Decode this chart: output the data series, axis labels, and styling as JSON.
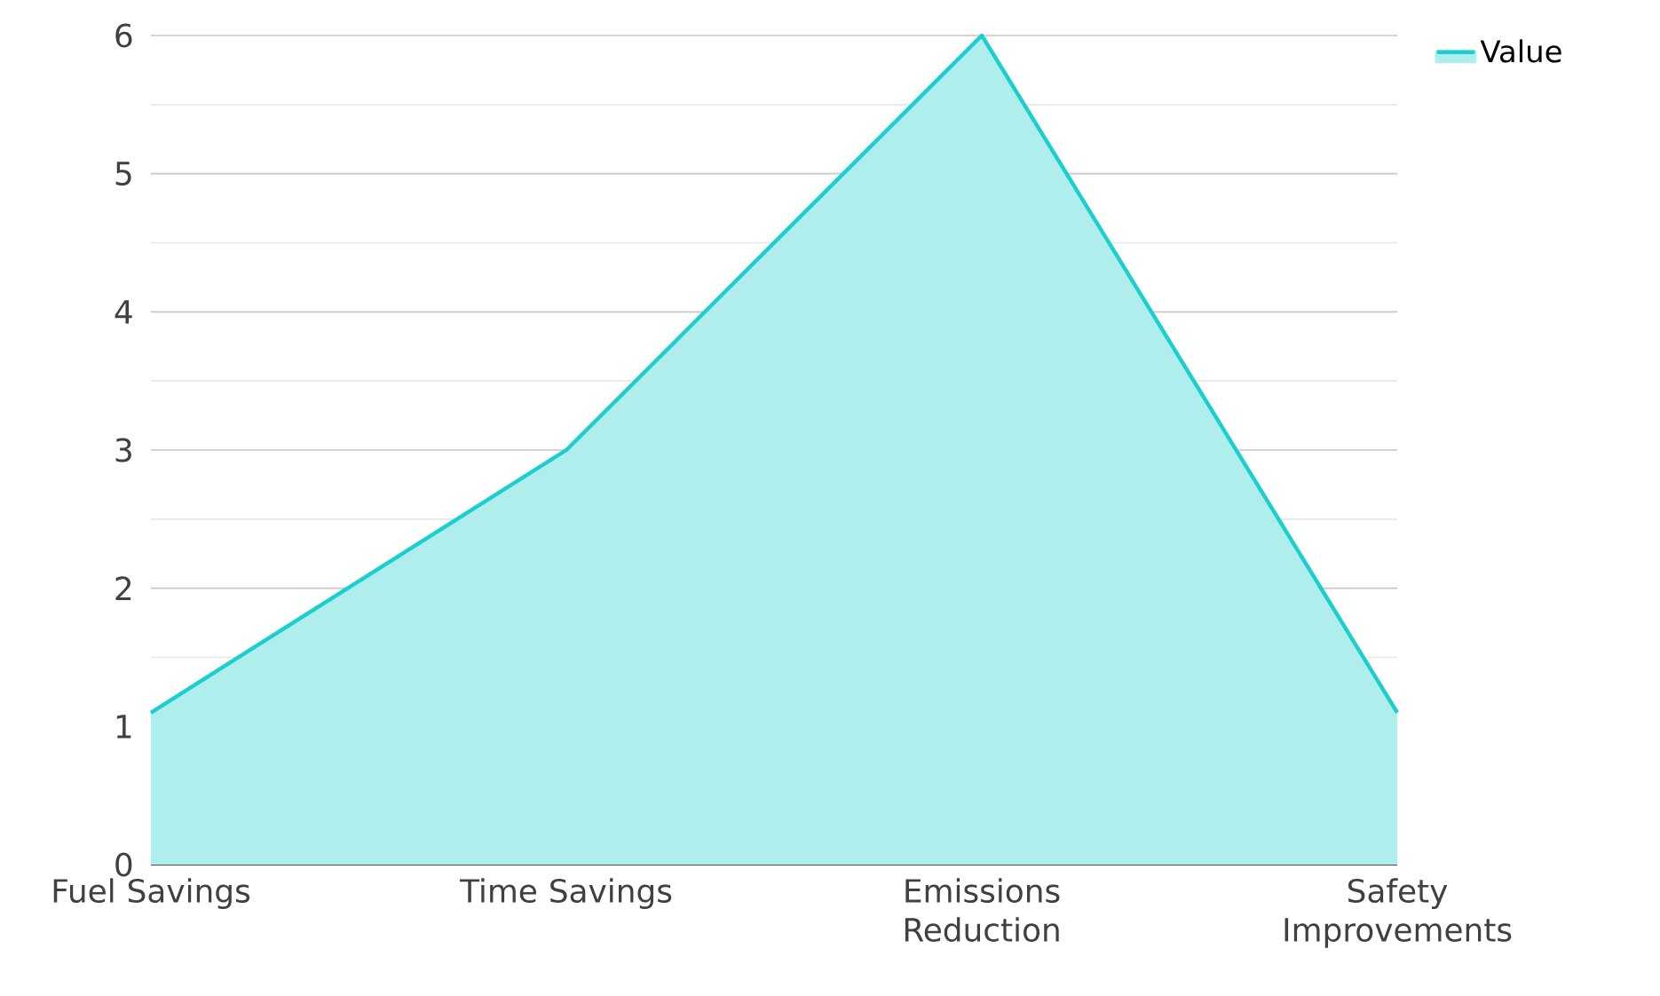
{
  "chart_data": {
    "type": "area",
    "categories": [
      "Fuel Savings",
      "Time Savings",
      "Emissions Reduction",
      "Safety Improvements"
    ],
    "series": [
      {
        "name": "Value",
        "color": "#1ccfcf",
        "values": [
          1.1,
          3,
          6,
          1.1
        ]
      }
    ],
    "ylim": [
      0,
      6
    ],
    "yticks": [
      0,
      1,
      2,
      3,
      4,
      5,
      6
    ],
    "grid": "y",
    "legend": "top right"
  }
}
